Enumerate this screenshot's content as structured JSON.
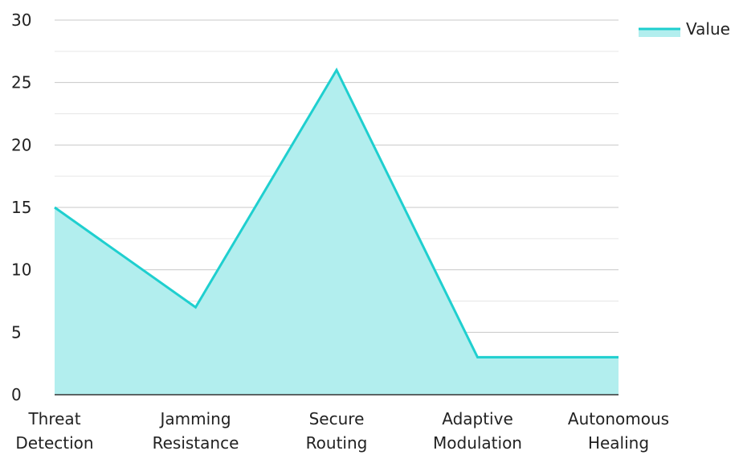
{
  "chart_data": {
    "type": "area",
    "categories": [
      [
        "Threat",
        "Detection"
      ],
      [
        "Jamming",
        "Resistance"
      ],
      [
        "Secure",
        "Routing"
      ],
      [
        "Adaptive",
        "Modulation"
      ],
      [
        "Autonomous",
        "Healing"
      ]
    ],
    "series": [
      {
        "name": "Value",
        "values": [
          15,
          7,
          26,
          3,
          3
        ]
      }
    ],
    "ylim": [
      0,
      30
    ],
    "yticks": [
      0,
      5,
      10,
      15,
      20,
      25,
      30
    ],
    "grid": true,
    "legend": "top-right",
    "colors": {
      "line": "#1fcfcf",
      "fill": "#b2eeee",
      "grid": "#c8c8c8",
      "axis": "#333333"
    }
  }
}
